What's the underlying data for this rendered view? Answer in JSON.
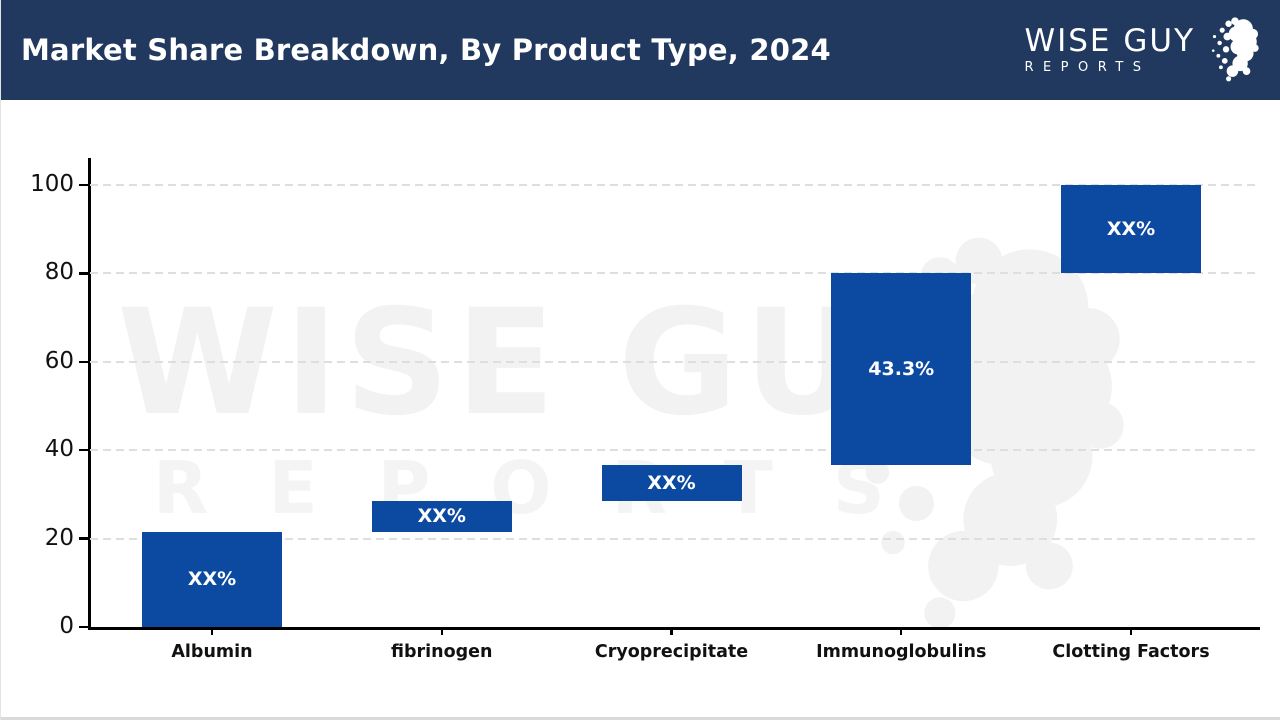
{
  "page": {
    "background": "#ffffff",
    "bottom_line_color": "#d9d9d9"
  },
  "header": {
    "background": "#21395F",
    "title": "Market Share Breakdown, By Product Type, 2024",
    "logo": {
      "wordmark": "WISE GUY",
      "tagline": "REPORTS",
      "icon": "dotted-face-profile"
    }
  },
  "watermark": {
    "wordmark": "WISE GUY",
    "tagline": "REPORTS"
  },
  "chart_data": {
    "type": "bar",
    "subtype": "waterfall",
    "title": "Market Share Breakdown, By Product Type, 2024",
    "xlabel": "",
    "ylabel": "",
    "ylim": [
      0,
      105
    ],
    "yticks": [
      0,
      20,
      40,
      60,
      80,
      100
    ],
    "grid": "horizontal-dashed",
    "gridline_color": "#dedede",
    "bar_color": "#0C4AA2",
    "label_color": "#ffffff",
    "categories": [
      "Albumin",
      "fibrinogen",
      "Cryoprecipitate",
      "Immunoglobulins",
      "Clotting Factors"
    ],
    "segments": [
      {
        "category": "Albumin",
        "start": 0,
        "end": 21.5,
        "label": "XX%"
      },
      {
        "category": "fibrinogen",
        "start": 21.5,
        "end": 28.5,
        "label": "XX%"
      },
      {
        "category": "Cryoprecipitate",
        "start": 28.5,
        "end": 36.7,
        "label": "XX%"
      },
      {
        "category": "Immunoglobulins",
        "start": 36.7,
        "end": 80.0,
        "label": "43.3%"
      },
      {
        "category": "Clotting Factors",
        "start": 80.0,
        "end": 100.0,
        "label": "XX%"
      }
    ]
  }
}
